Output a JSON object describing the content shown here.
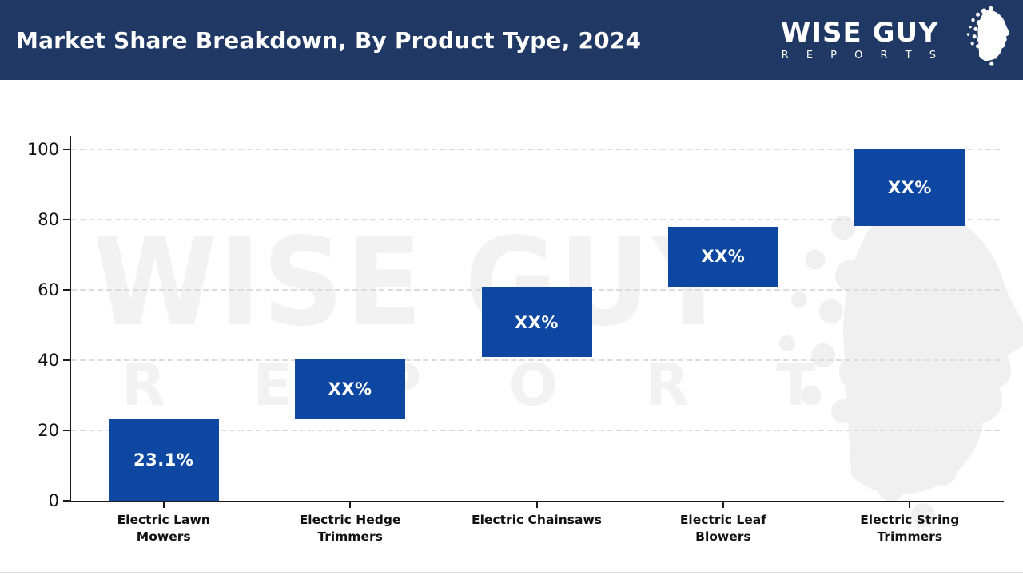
{
  "header": {
    "title": "Market Share Breakdown, By Product Type, 2024",
    "logo": {
      "name": "WISE GUY",
      "subtitle": "R E P O R T S"
    }
  },
  "watermark": {
    "line1": "WISE GUY",
    "line2": "R E P O R T S"
  },
  "chart_data": {
    "type": "bar",
    "subtype": "waterfall-style floating percentage bars",
    "title": "Market Share Breakdown, By Product Type, 2024",
    "xlabel": "",
    "ylabel": "",
    "ylim": [
      0,
      105
    ],
    "yticks": [
      0,
      20,
      40,
      60,
      80,
      100
    ],
    "grid": "horizontal dashed",
    "legend": "none",
    "categories": [
      "Electric Lawn\nMowers",
      "Electric Hedge\nTrimmers",
      "Electric Chainsaws",
      "Electric Leaf\nBlowers",
      "Electric String\nTrimmers"
    ],
    "bars": [
      {
        "category": "Electric Lawn Mowers",
        "start": 0,
        "end": 23.1,
        "label": "23.1%"
      },
      {
        "category": "Electric Hedge Trimmers",
        "start": 23.1,
        "end": 40.5,
        "label": "XX%"
      },
      {
        "category": "Electric Chainsaws",
        "start": 40.8,
        "end": 60.6,
        "label": "XX%"
      },
      {
        "category": "Electric Leaf Blowers",
        "start": 60.9,
        "end": 77.9,
        "label": "XX%"
      },
      {
        "category": "Electric String Trimmers",
        "start": 78.2,
        "end": 99.8,
        "label": "XX%"
      }
    ],
    "bar_color": "#0d47a1",
    "bar_label_color": "#ffffff"
  },
  "colors": {
    "header_bg": "#1f3864",
    "bar": "#0d47a1",
    "axis": "#1a1a1a",
    "gridline": "#dcdcdc",
    "watermark": "#f2f2f2",
    "footer_line": "#d9d9d9"
  }
}
